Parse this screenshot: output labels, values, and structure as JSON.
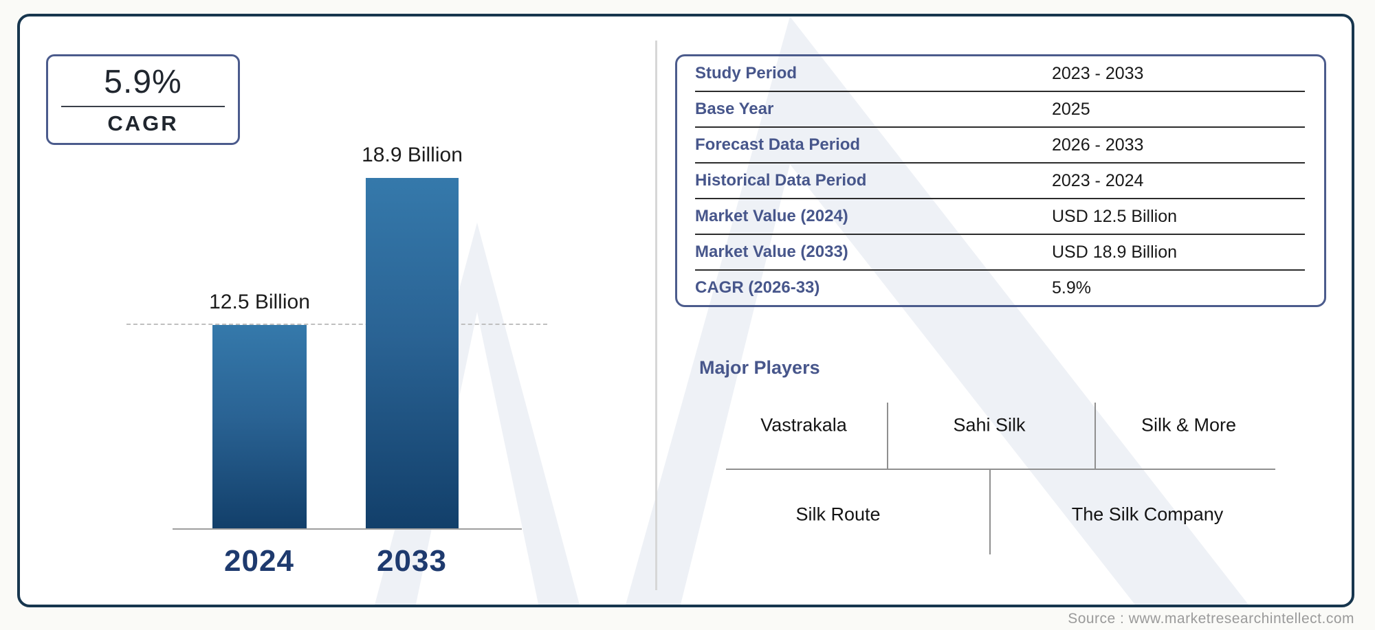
{
  "cagr_box": {
    "value": "5.9%",
    "label": "CAGR"
  },
  "chart_data": {
    "type": "bar",
    "categories": [
      "2024",
      "2033"
    ],
    "values": [
      12.5,
      18.9
    ],
    "value_labels": [
      "12.5 Billion",
      "18.9 Billion"
    ],
    "unit": "USD Billion",
    "title": "",
    "xlabel": "",
    "ylabel": "",
    "ylim": [
      3.7,
      21
    ],
    "grid": "single dashed horizontal reference line at level of first bar top",
    "legend": "none"
  },
  "info_table": {
    "rows": [
      {
        "label": "Study Period",
        "value": "2023 - 2033"
      },
      {
        "label": "Base Year",
        "value": "2025"
      },
      {
        "label": "Forecast Data Period",
        "value": "2026 - 2033"
      },
      {
        "label": "Historical Data Period",
        "value": "2023 - 2024"
      },
      {
        "label": "Market Value (2024)",
        "value": "USD 12.5 Billion"
      },
      {
        "label": "Market Value (2033)",
        "value": "USD 18.9 Billion"
      },
      {
        "label": "CAGR (2026-33)",
        "value": "5.9%"
      }
    ]
  },
  "major_players": {
    "heading": "Major Players",
    "row1": [
      "Vastrakala",
      "Sahi Silk",
      "Silk & More"
    ],
    "row2": [
      "Silk Route",
      "The Silk Company"
    ]
  },
  "source": "Source : www.marketresearchintellect.com",
  "colors": {
    "outer_border": "#17364e",
    "accent_slate": "#4b5b8c",
    "bar_gradient_top": "#3579ab",
    "bar_gradient_bottom": "#123f6a",
    "year_label": "#1e3a6e",
    "watermark": "#eef1f6",
    "text_dark": "#191919",
    "muted_gray": "#9a9a9a"
  }
}
